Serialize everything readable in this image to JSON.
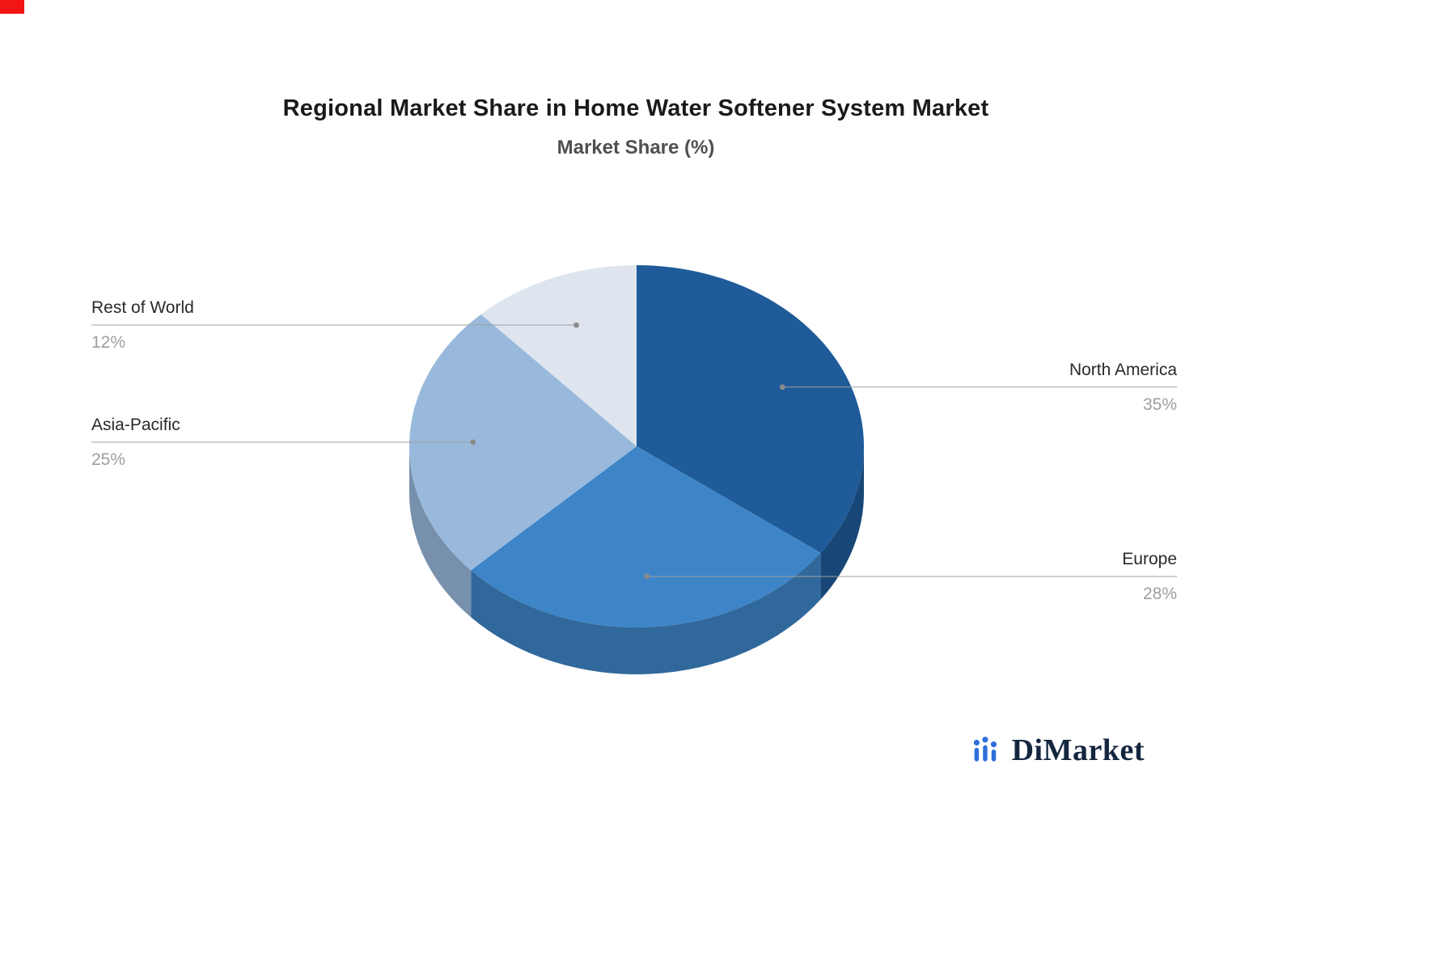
{
  "chart_data": {
    "type": "pie",
    "effect": "3d",
    "title": "Regional Market Share in Home Water Softener System Market",
    "subtitle": "Market Share (%)",
    "unit": "%",
    "legend_position": "none",
    "label_style": "callout lines with name above and percent below",
    "slices": [
      {
        "label": "North America",
        "value": 35,
        "pct_label": "35%",
        "color": "#1f5b99"
      },
      {
        "label": "Europe",
        "value": 28,
        "pct_label": "28%",
        "color": "#3e85c7"
      },
      {
        "label": "Asia-Pacific",
        "value": 25,
        "pct_label": "25%",
        "color": "#99b9dc"
      },
      {
        "label": "Rest of World",
        "value": 12,
        "pct_label": "12%",
        "color": "#dee5ef"
      }
    ]
  },
  "branding": {
    "logo_text": "DiMarket",
    "logo_icon": "bar-chart-dots-icon",
    "logo_text_color": "#15273f",
    "logo_icon_color": "#2e6fdb"
  },
  "decorations": {
    "corner_mark_color": "#f31414",
    "leader_line_color": "#a0a0a0",
    "percent_text_color": "#9e9e9e"
  }
}
